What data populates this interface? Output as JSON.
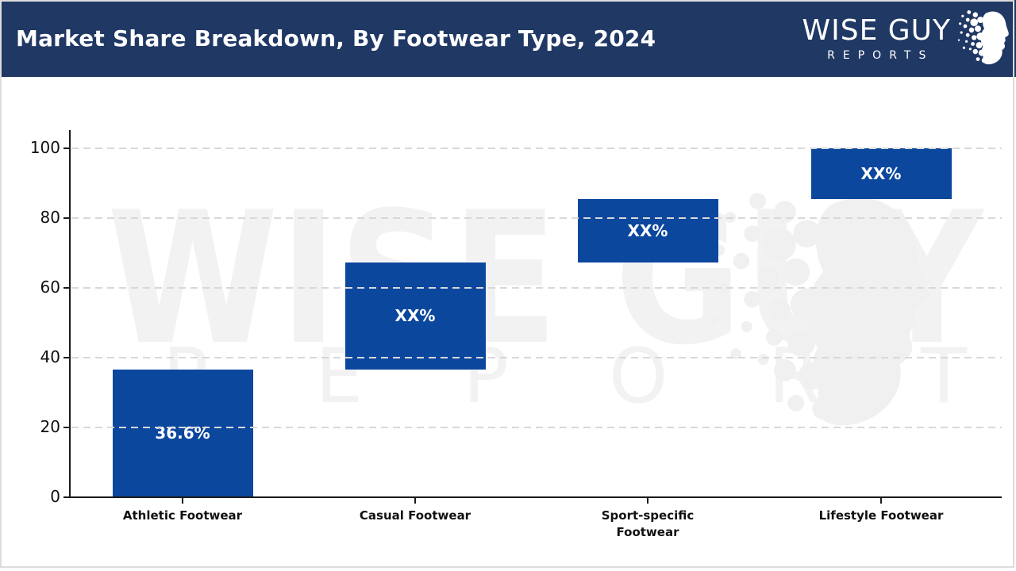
{
  "header": {
    "title": "Market Share Breakdown, By Footwear Type, 2024",
    "bg_color": "#203864",
    "logo": {
      "line1": "WISE GUY",
      "line2": "REPORTS"
    }
  },
  "watermark": {
    "line1": "WISE GUY",
    "line2": "R E P O R T S"
  },
  "chart_data": {
    "type": "bar",
    "variant": "floating-waterfall",
    "title": "Market Share Breakdown, By Footwear Type, 2024",
    "unit": "%",
    "categories": [
      "Athletic Footwear",
      "Casual Footwear",
      "Sport-specific Footwear",
      "Lifestyle Footwear"
    ],
    "categories_display": [
      "Athletic Footwear",
      "Casual Footwear",
      "Sport-specific\nFootwear",
      "Lifestyle Footwear"
    ],
    "segments": [
      {
        "category": "Athletic Footwear",
        "start": 0,
        "end": 36.6,
        "label": "36.6%"
      },
      {
        "category": "Casual Footwear",
        "start": 36.6,
        "end": 67.3,
        "label": "XX%"
      },
      {
        "category": "Sport-specific Footwear",
        "start": 67.3,
        "end": 85.4,
        "label": "XX%"
      },
      {
        "category": "Lifestyle Footwear",
        "start": 85.4,
        "end": 100,
        "label": "XX%"
      }
    ],
    "ylim": [
      0,
      100
    ],
    "yticks": [
      0,
      20,
      40,
      60,
      80,
      100
    ],
    "grid": {
      "horizontal": true,
      "style": "dashed",
      "color": "#d8d8d8",
      "drawn_above_bars": true
    },
    "legend": "none",
    "bar_color": "#0c479e",
    "bar_label_color": "#ffffff",
    "axis_color": "#1a1a1a",
    "tick_label_color": "#111111"
  }
}
